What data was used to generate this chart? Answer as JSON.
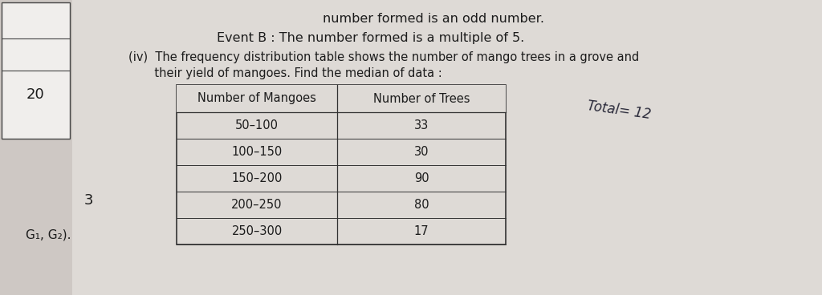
{
  "title_line1": "number formed is an odd number.",
  "title_line2": "Event B : The number formed is a multiple of 5.",
  "body_line1": "(iv)  The frequency distribution table shows the number of mango trees in a grove and",
  "body_line2": "       their yield of mangoes. Find the median of data :",
  "col1_header": "Number of Mangoes",
  "col2_header": "Number of Trees",
  "rows": [
    [
      "50–100",
      "33"
    ],
    [
      "100–150",
      "30"
    ],
    [
      "150–200",
      "90"
    ],
    [
      "200–250",
      "80"
    ],
    [
      "250–300",
      "17"
    ]
  ],
  "annotation": "Total= 12",
  "bg_color": "#cec8c4",
  "page_color": "#dedad6",
  "text_color": "#1c1c1c",
  "left_box_bg": "#f0eeec",
  "left_box_edge": "#444444",
  "table_bg_header": "#dedad6",
  "table_bg_row": "#d8d4d0",
  "table_edge": "#333333",
  "left_num": "20",
  "left_num2": "3",
  "left_text": "G₁, G₂).",
  "annot_color": "#2a2a3a"
}
